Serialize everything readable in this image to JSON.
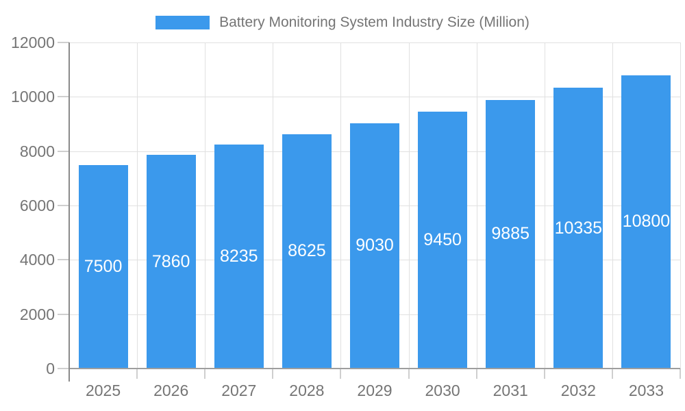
{
  "chart_data": {
    "type": "bar",
    "title": "Battery Monitoring System Industry Size (Million)",
    "categories": [
      "2025",
      "2026",
      "2027",
      "2028",
      "2029",
      "2030",
      "2031",
      "2032",
      "2033"
    ],
    "values": [
      7500,
      7860,
      8235,
      8625,
      9030,
      9450,
      9885,
      10335,
      10800
    ],
    "xlabel": "",
    "ylabel": "",
    "ylim": [
      0,
      12000
    ],
    "yticks": [
      0,
      2000,
      4000,
      6000,
      8000,
      10000,
      12000
    ],
    "grid": true,
    "legend_position": "top-center",
    "value_label_position": "inside-center",
    "colors": {
      "bar": "#3b99ec",
      "value_label": "#ffffff",
      "text": "#757575",
      "gridline": "#e0e0e0",
      "tick": "#cfcfcf",
      "baseline": "#9e9e9e",
      "y_axis_line": "#8a8a8a",
      "background": "#ffffff"
    }
  }
}
